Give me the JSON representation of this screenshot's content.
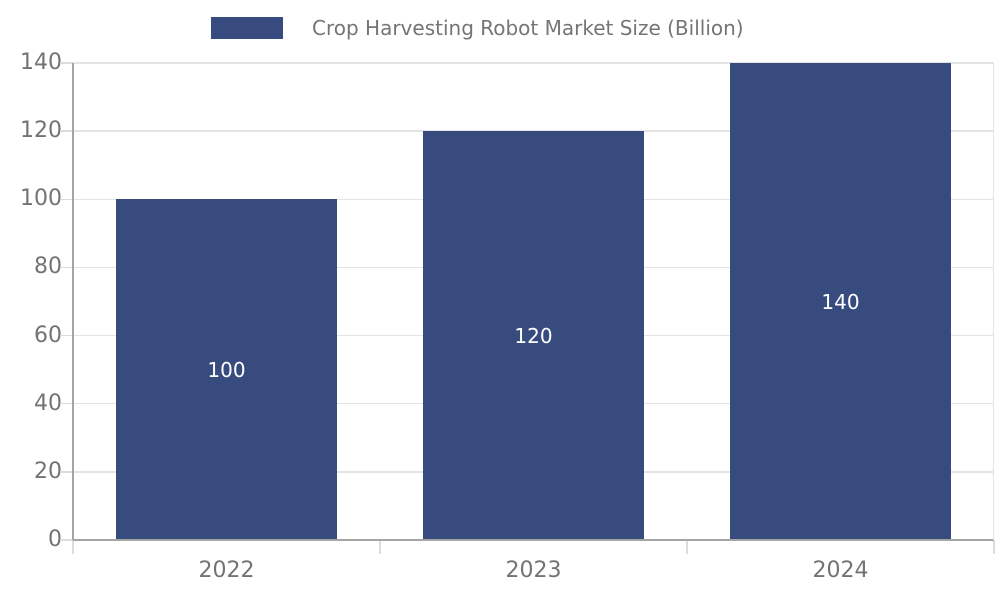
{
  "legend": {
    "label": "Crop Harvesting Robot Market Size (Billion)"
  },
  "chart_data": {
    "type": "bar",
    "title": "Crop Harvesting Robot Market Size (Billion)",
    "categories": [
      "2022",
      "2023",
      "2024"
    ],
    "values": [
      100,
      120,
      140
    ],
    "xlabel": "",
    "ylabel": "",
    "ylim": [
      0,
      140
    ],
    "yticks": [
      0,
      20,
      40,
      60,
      80,
      100,
      120,
      140
    ],
    "grid": true,
    "legend_position": "top-center",
    "bar_width_fraction": 0.72,
    "colors": {
      "bar": "#374B7E",
      "value_label": "#FFFFFF",
      "axis": "#A5A5A5",
      "grid": "#E4E4E4",
      "tick": "#DCDCDC",
      "tick_label": "#737373",
      "legend_label": "#757575",
      "background": "#FFFFFF"
    }
  }
}
